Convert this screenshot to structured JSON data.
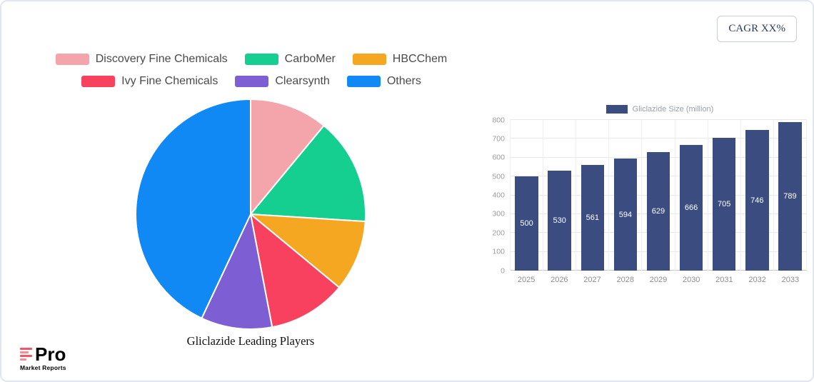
{
  "cagr": {
    "label": "CAGR XX%"
  },
  "logo": {
    "title": "Pro",
    "subtitle": "Market Reports"
  },
  "chart_data": [
    {
      "type": "pie",
      "title": "Gliclazide Leading Players",
      "labels": [
        "Discovery Fine Chemicals",
        "CarboMer",
        "HBCChem",
        "Ivy Fine Chemicals",
        "Clearsynth",
        "Others"
      ],
      "values": [
        11,
        15,
        10,
        11,
        10,
        43
      ],
      "colors": [
        "#f4a5ab",
        "#15cf90",
        "#f6a722",
        "#f8415f",
        "#7d5fd3",
        "#1189f5"
      ],
      "legend_position": "top"
    },
    {
      "type": "bar",
      "legend_label": "Gliclazide Size (million)",
      "categories": [
        "2025",
        "2026",
        "2027",
        "2028",
        "2029",
        "2030",
        "2031",
        "2032",
        "2033"
      ],
      "values": [
        500,
        530,
        561,
        594,
        629,
        666,
        705,
        746,
        789
      ],
      "ylim": [
        0,
        800
      ],
      "ytick_step": 100,
      "bar_color": "#3b4d80",
      "grid": true,
      "legend_position": "top"
    }
  ]
}
